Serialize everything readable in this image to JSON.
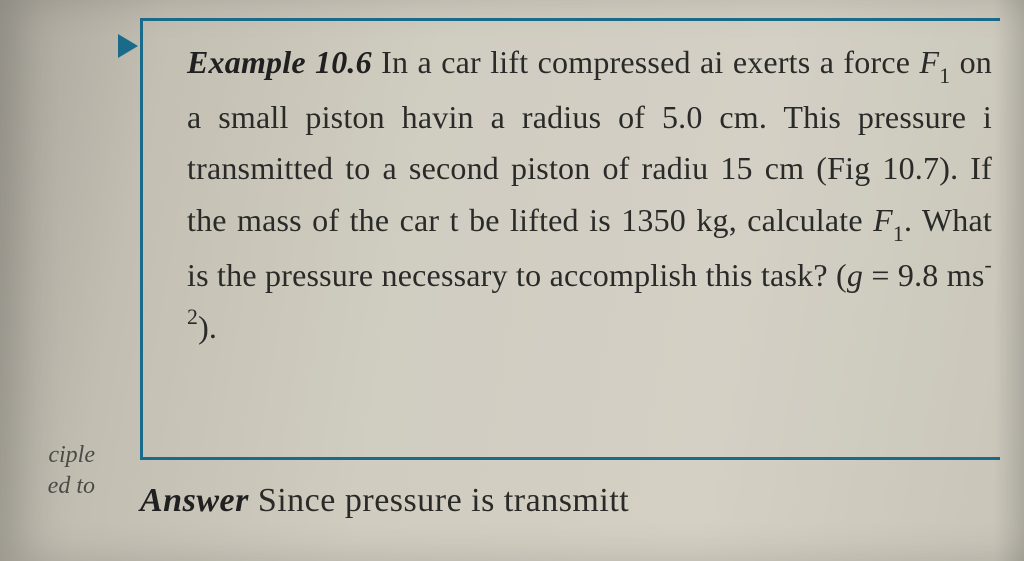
{
  "margin": {
    "line1": "ciple",
    "line2": "ed to"
  },
  "example": {
    "label": "Example 10.6",
    "sentence1_a": " In a car lift compressed ai",
    "sentence1_b": "exerts a force ",
    "force_sym": "F",
    "force_sub": "1",
    "sentence1_c": " on a small piston havin",
    "sentence2_a": "a radius of 5.0 cm. This pressure i",
    "sentence2_b": "transmitted to a second piston of radiu",
    "sentence2_c": "15 cm (Fig 10.7). If the mass of the car t",
    "sentence3_a": "be lifted is 1350 kg, calculate ",
    "force2_sym": "F",
    "force2_sub": "1",
    "sentence3_b": ". What is",
    "sentence4_a": "the pressure necessary to accomplish this",
    "sentence5_a": "task? (",
    "g_sym": "g",
    "eq": " = 9.8 ms",
    "exp": "-2",
    "sentence5_b": ")."
  },
  "answer": {
    "label": "Answer",
    "text": " Since pressure is transmitt"
  },
  "colors": {
    "box_border": "#1a6a8a",
    "text": "#2a2a28",
    "bg": "#c8c4b8"
  }
}
